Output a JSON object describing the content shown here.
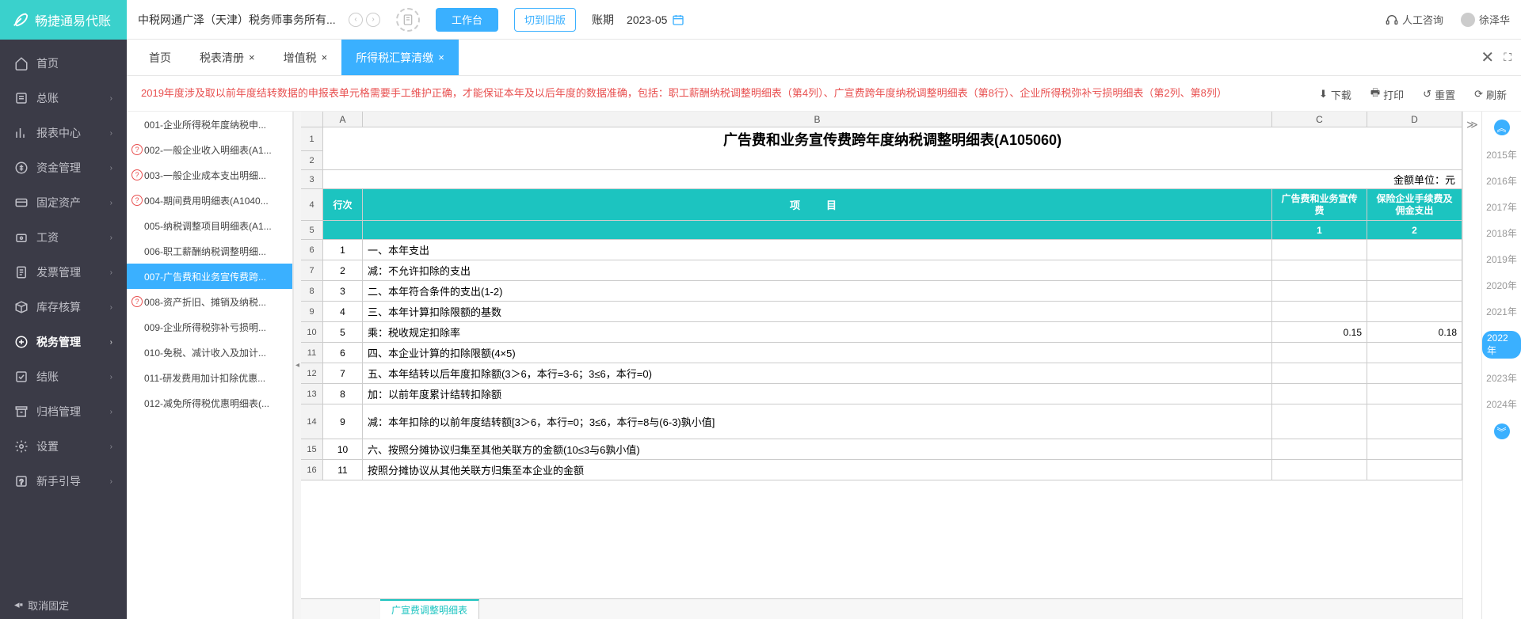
{
  "brand": "畅捷通易代账",
  "company_selector": "中税网通广泽（天津）税务师事务所有...",
  "topbar": {
    "workbench_btn": "工作台",
    "switch_old_btn": "切到旧版",
    "period_label": "账期",
    "period_value": "2023-05",
    "support_link": "人工咨询",
    "user_name": "徐泽华"
  },
  "sidebar": [
    {
      "icon": "home",
      "label": "首页",
      "chev": false
    },
    {
      "icon": "ledger",
      "label": "总账",
      "chev": true
    },
    {
      "icon": "report",
      "label": "报表中心",
      "chev": true
    },
    {
      "icon": "fund",
      "label": "资金管理",
      "chev": true
    },
    {
      "icon": "asset",
      "label": "固定资产",
      "chev": true
    },
    {
      "icon": "salary",
      "label": "工资",
      "chev": true
    },
    {
      "icon": "invoice",
      "label": "发票管理",
      "chev": true
    },
    {
      "icon": "stock",
      "label": "库存核算",
      "chev": true
    },
    {
      "icon": "tax",
      "label": "税务管理",
      "chev": true,
      "active": true
    },
    {
      "icon": "close",
      "label": "结账",
      "chev": true
    },
    {
      "icon": "archive",
      "label": "归档管理",
      "chev": true
    },
    {
      "icon": "setting",
      "label": "设置",
      "chev": true
    },
    {
      "icon": "guide",
      "label": "新手引导",
      "chev": true
    }
  ],
  "sidebar_footer": "取消固定",
  "tabs": [
    {
      "label": "首页",
      "closable": false
    },
    {
      "label": "税表清册",
      "closable": true
    },
    {
      "label": "增值税",
      "closable": true
    },
    {
      "label": "所得税汇算清缴",
      "closable": true,
      "active": true
    }
  ],
  "notice": "2019年度涉及取以前年度结转数据的申报表单元格需要手工维护正确，才能保证本年及以后年度的数据准确，包括：职工薪酬纳税调整明细表（第4列）、广宣费跨年度纳税调整明细表（第8行）、企业所得税弥补亏损明细表（第2列、第8列）",
  "actions": {
    "download": "下载",
    "print": "打印",
    "reset": "重置",
    "refresh": "刷新"
  },
  "forms": [
    {
      "label": "001-企业所得税年度纳税申..."
    },
    {
      "label": "002-一般企业收入明细表(A1...",
      "q": true
    },
    {
      "label": "003-一般企业成本支出明细...",
      "q": true
    },
    {
      "label": "004-期间费用明细表(A1040...",
      "q": true
    },
    {
      "label": "005-纳税调整项目明细表(A1..."
    },
    {
      "label": "006-职工薪酬纳税调整明细..."
    },
    {
      "label": "007-广告费和业务宣传费跨...",
      "active": true
    },
    {
      "label": "008-资产折旧、摊销及纳税...",
      "q": true
    },
    {
      "label": "009-企业所得税弥补亏损明..."
    },
    {
      "label": "010-免税、减计收入及加计..."
    },
    {
      "label": "011-研发费用加计扣除优惠..."
    },
    {
      "label": "012-减免所得税优惠明细表(..."
    }
  ],
  "sheet": {
    "title": "广告费和业务宣传费跨年度纳税调整明细表(A105060)",
    "unit_label": "金额单位：元",
    "col_headers": [
      "A",
      "B",
      "C",
      "D"
    ],
    "header": {
      "seq": "行次",
      "item": "项　目",
      "c": "广告费和业务宣传费",
      "d": "保险企业手续费及佣金支出",
      "c2": "1",
      "d2": "2"
    },
    "rows": [
      {
        "n": 1,
        "seq": "1",
        "b": "一、本年支出"
      },
      {
        "n": 2,
        "seq": "2",
        "b": "减：不允许扣除的支出"
      },
      {
        "n": 3,
        "seq": "3",
        "b": "二、本年符合条件的支出(1-2)"
      },
      {
        "n": 4,
        "seq": "4",
        "b": "三、本年计算扣除限额的基数"
      },
      {
        "n": 5,
        "seq": "5",
        "b": "乘：税收规定扣除率",
        "c": "0.15",
        "d": "0.18"
      },
      {
        "n": 6,
        "seq": "6",
        "b": "四、本企业计算的扣除限额(4×5)"
      },
      {
        "n": 7,
        "seq": "7",
        "b": "五、本年结转以后年度扣除额(3＞6，本行=3-6；3≤6，本行=0)"
      },
      {
        "n": 8,
        "seq": "8",
        "b": "加：以前年度累计结转扣除额"
      },
      {
        "n": 9,
        "seq": "9",
        "b": "减：本年扣除的以前年度结转额[3＞6，本行=0；3≤6，本行=8与(6-3)孰小值]",
        "tall": true
      },
      {
        "n": 10,
        "seq": "10",
        "b": "六、按照分摊协议归集至其他关联方的金额(10≤3与6孰小值)"
      },
      {
        "n": 11,
        "seq": "11",
        "b": "按照分摊协议从其他关联方归集至本企业的金额"
      }
    ],
    "footer_tab": "广宣费调整明细表"
  },
  "years": [
    "2015年",
    "2016年",
    "2017年",
    "2018年",
    "2019年",
    "2020年",
    "2021年",
    "2022年",
    "2023年",
    "2024年"
  ],
  "active_year": "2022年",
  "colors": {
    "primary": "#3ab0ff",
    "teal": "#1cc4c0",
    "brand_bg": "#3ad1cc",
    "sidebar_bg": "#3b3b47",
    "notice": "#e85050"
  }
}
